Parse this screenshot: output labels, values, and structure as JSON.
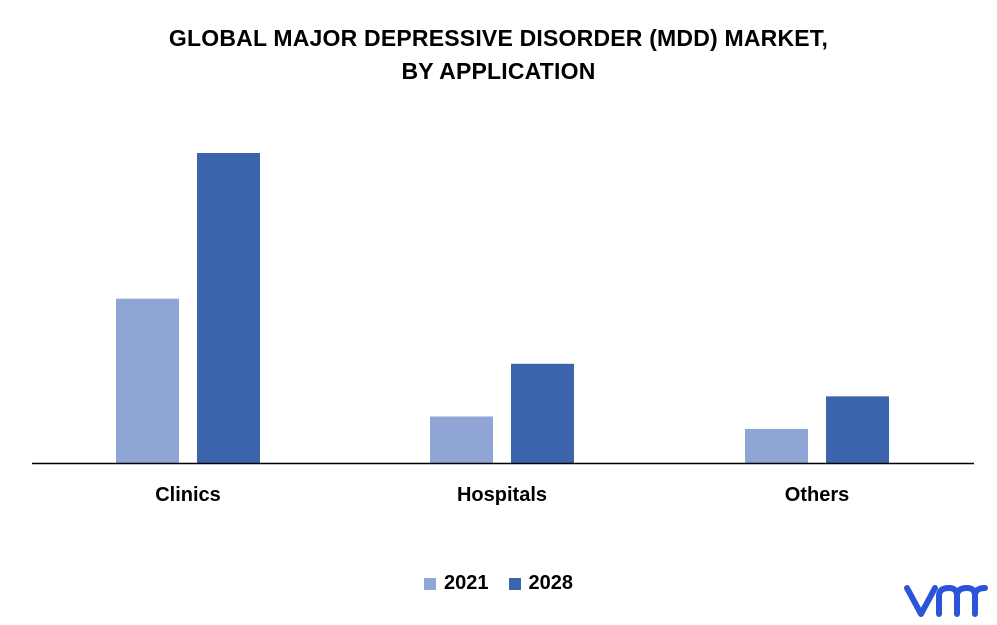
{
  "chart_data": {
    "type": "bar",
    "title_lines": [
      "GLOBAL MAJOR DEPRESSIVE DISORDER (MDD) MARKET,",
      "BY APPLICATION"
    ],
    "categories": [
      "Clinics",
      "Hospitals",
      "Others"
    ],
    "series": [
      {
        "name": "2021",
        "color": "#8FA5D6",
        "values": [
          5.3,
          1.5,
          1.1
        ]
      },
      {
        "name": "2028",
        "color": "#3B64AD",
        "values": [
          10.0,
          3.2,
          2.15
        ]
      }
    ],
    "ylim": [
      0,
      10.5
    ],
    "grid": false,
    "legend_position": "bottom-center",
    "axis_color": "#000000"
  },
  "logo": {
    "icon": "vmr-logo",
    "color": "#2C54D8"
  }
}
